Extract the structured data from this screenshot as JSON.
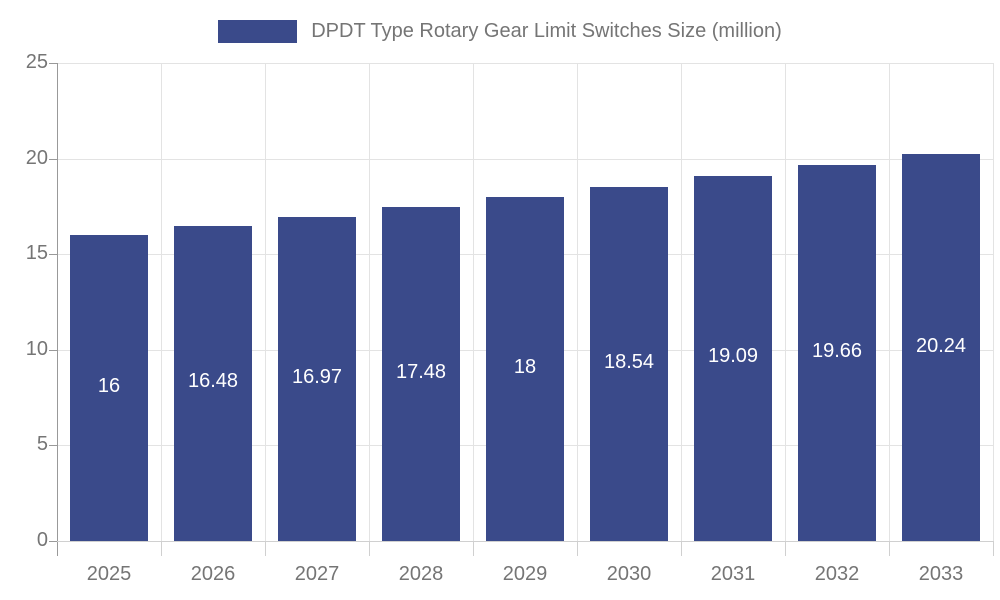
{
  "chart_data": {
    "type": "bar",
    "title": "DPDT Type Rotary Gear Limit Switches Size (million)",
    "categories": [
      "2025",
      "2026",
      "2027",
      "2028",
      "2029",
      "2030",
      "2031",
      "2032",
      "2033"
    ],
    "values": [
      16,
      16.48,
      16.97,
      17.48,
      18,
      18.54,
      19.09,
      19.66,
      20.24
    ],
    "xlabel": "",
    "ylabel": "",
    "ylim": [
      0,
      25
    ],
    "yticks": [
      0,
      5,
      10,
      15,
      20,
      25
    ],
    "grid": true,
    "legend_position": "top",
    "colors": {
      "bar": "#3A4A8A",
      "bar_value_text": "#FFFFFF",
      "axis_text": "#757575",
      "grid_line": "#E3E3E3",
      "axis_line": "#999999",
      "baseline": "#D0D0D0",
      "background": "#FFFFFF"
    }
  }
}
